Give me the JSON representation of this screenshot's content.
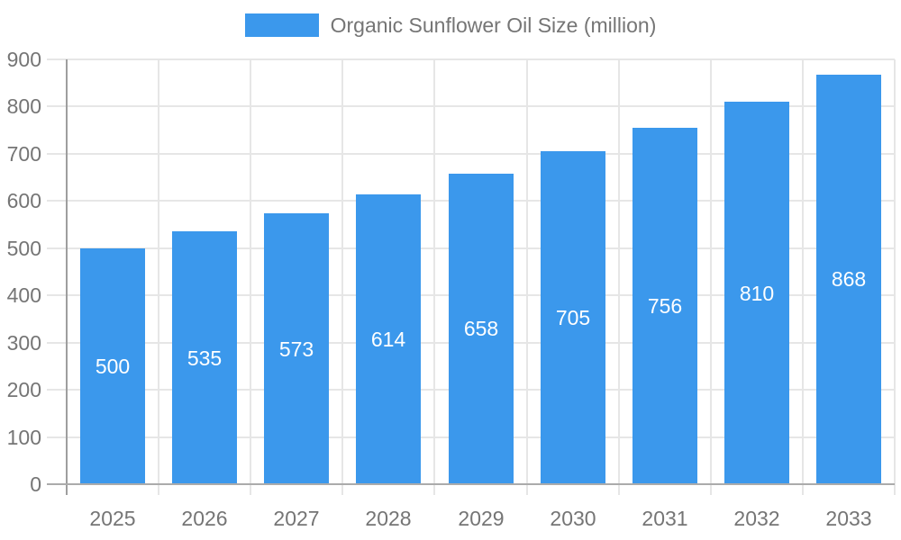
{
  "chart_data": {
    "type": "bar",
    "legend": "Organic Sunflower Oil Size (million)",
    "legend_position": "top-center",
    "categories": [
      "2025",
      "2026",
      "2027",
      "2028",
      "2029",
      "2030",
      "2031",
      "2032",
      "2033"
    ],
    "values": [
      500,
      535,
      573,
      614,
      658,
      705,
      756,
      810,
      868
    ],
    "title": "",
    "xlabel": "",
    "ylabel": "",
    "ylim": [
      0,
      900
    ],
    "ytick_step": 100,
    "ytick_labels": [
      "0",
      "100",
      "200",
      "300",
      "400",
      "500",
      "600",
      "700",
      "800",
      "900"
    ],
    "grid": true,
    "value_labels_inside_bars": true,
    "colors": {
      "bar": "#3B98EC",
      "bar_value_text": "#FFFFFF",
      "axis_text": "#757575",
      "gridline": "#E6E6E6",
      "y_axis_line": "#9E9E9E",
      "x_axis_line": "#ABABAB"
    }
  }
}
